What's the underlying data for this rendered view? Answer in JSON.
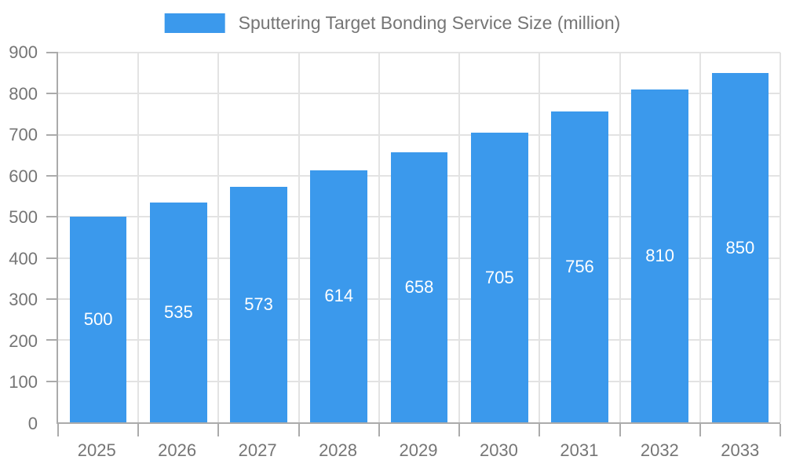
{
  "chart_data": {
    "type": "bar",
    "title": "Sputtering Target Bonding Service Size (million)",
    "legend": {
      "position": "top",
      "label": "Sputtering Target Bonding Service Size (million)"
    },
    "categories": [
      "2025",
      "2026",
      "2027",
      "2028",
      "2029",
      "2030",
      "2031",
      "2032",
      "2033"
    ],
    "values": [
      500,
      535,
      573,
      614,
      658,
      705,
      756,
      810,
      850
    ],
    "bar_value_labels": [
      "500",
      "535",
      "573",
      "614",
      "658",
      "705",
      "756",
      "810",
      "850"
    ],
    "xlabel": "",
    "ylabel": "",
    "ylim": [
      0,
      900
    ],
    "ytick_interval": 100,
    "yticks": [
      "0",
      "100",
      "200",
      "300",
      "400",
      "500",
      "600",
      "700",
      "800",
      "900"
    ],
    "grid": true,
    "legend_position": "top",
    "colors": {
      "bar": "#3B99EC",
      "bar_label": "#FFFFFF",
      "axis_line": "#ABABAB",
      "gridline": "#E3E3E3",
      "tick_label": "#757575",
      "background": "#FFFFFF"
    }
  }
}
